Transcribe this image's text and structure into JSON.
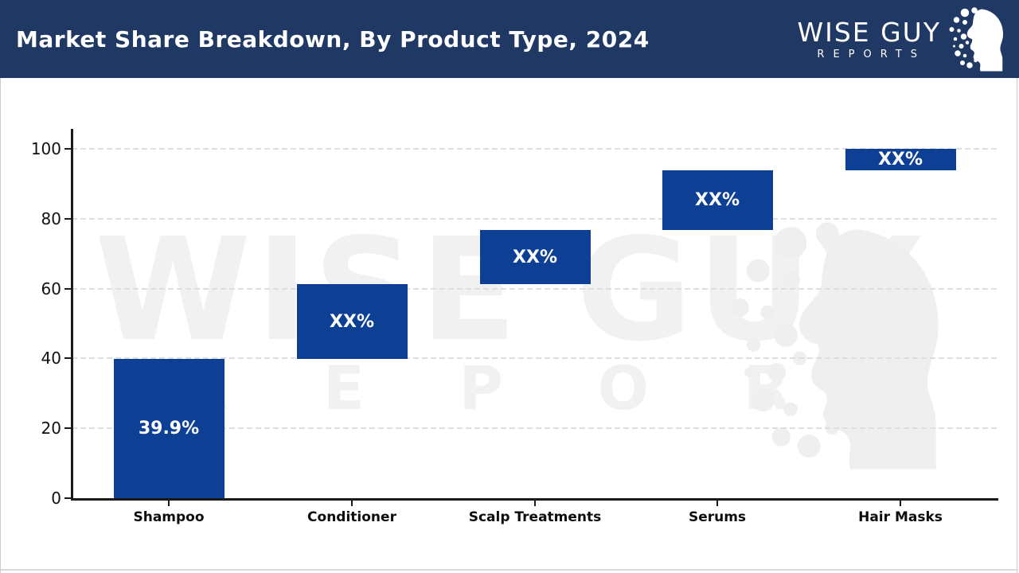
{
  "header": {
    "title": "Market Share Breakdown, By Product Type, 2024",
    "logo": {
      "line1": "WISE GUY",
      "line2": "REPORTS"
    }
  },
  "watermark": {
    "line1": "WISE GUY",
    "line2": "REPORTS"
  },
  "colors": {
    "header_bg": "#1F3864",
    "bar": "#0D3F94",
    "grid": "#DEDEDE",
    "axis": "#1A1A1A",
    "bar_label": "#FFFFFF",
    "watermark": "#F1F1F1"
  },
  "chart_data": {
    "type": "bar",
    "subtype": "waterfall",
    "title": "Market Share Breakdown, By Product Type, 2024",
    "xlabel": "",
    "ylabel": "",
    "ylim": [
      0,
      105
    ],
    "yticks": [
      0,
      20,
      40,
      60,
      80,
      100
    ],
    "grid": "dashed-horizontal",
    "legend": "none",
    "categories": [
      "Shampoo",
      "Conditioner",
      "Scalp Treatments",
      "Serums",
      "Hair Masks"
    ],
    "segments": [
      {
        "category": "Shampoo",
        "start": 0,
        "end": 39.9,
        "label": "39.9%"
      },
      {
        "category": "Conditioner",
        "start": 39.9,
        "end": 61.2,
        "label": "XX%"
      },
      {
        "category": "Scalp Treatments",
        "start": 61.2,
        "end": 76.8,
        "label": "XX%"
      },
      {
        "category": "Serums",
        "start": 76.8,
        "end": 93.8,
        "label": "XX%"
      },
      {
        "category": "Hair Masks",
        "start": 93.8,
        "end": 100,
        "label": "XX%"
      }
    ]
  }
}
